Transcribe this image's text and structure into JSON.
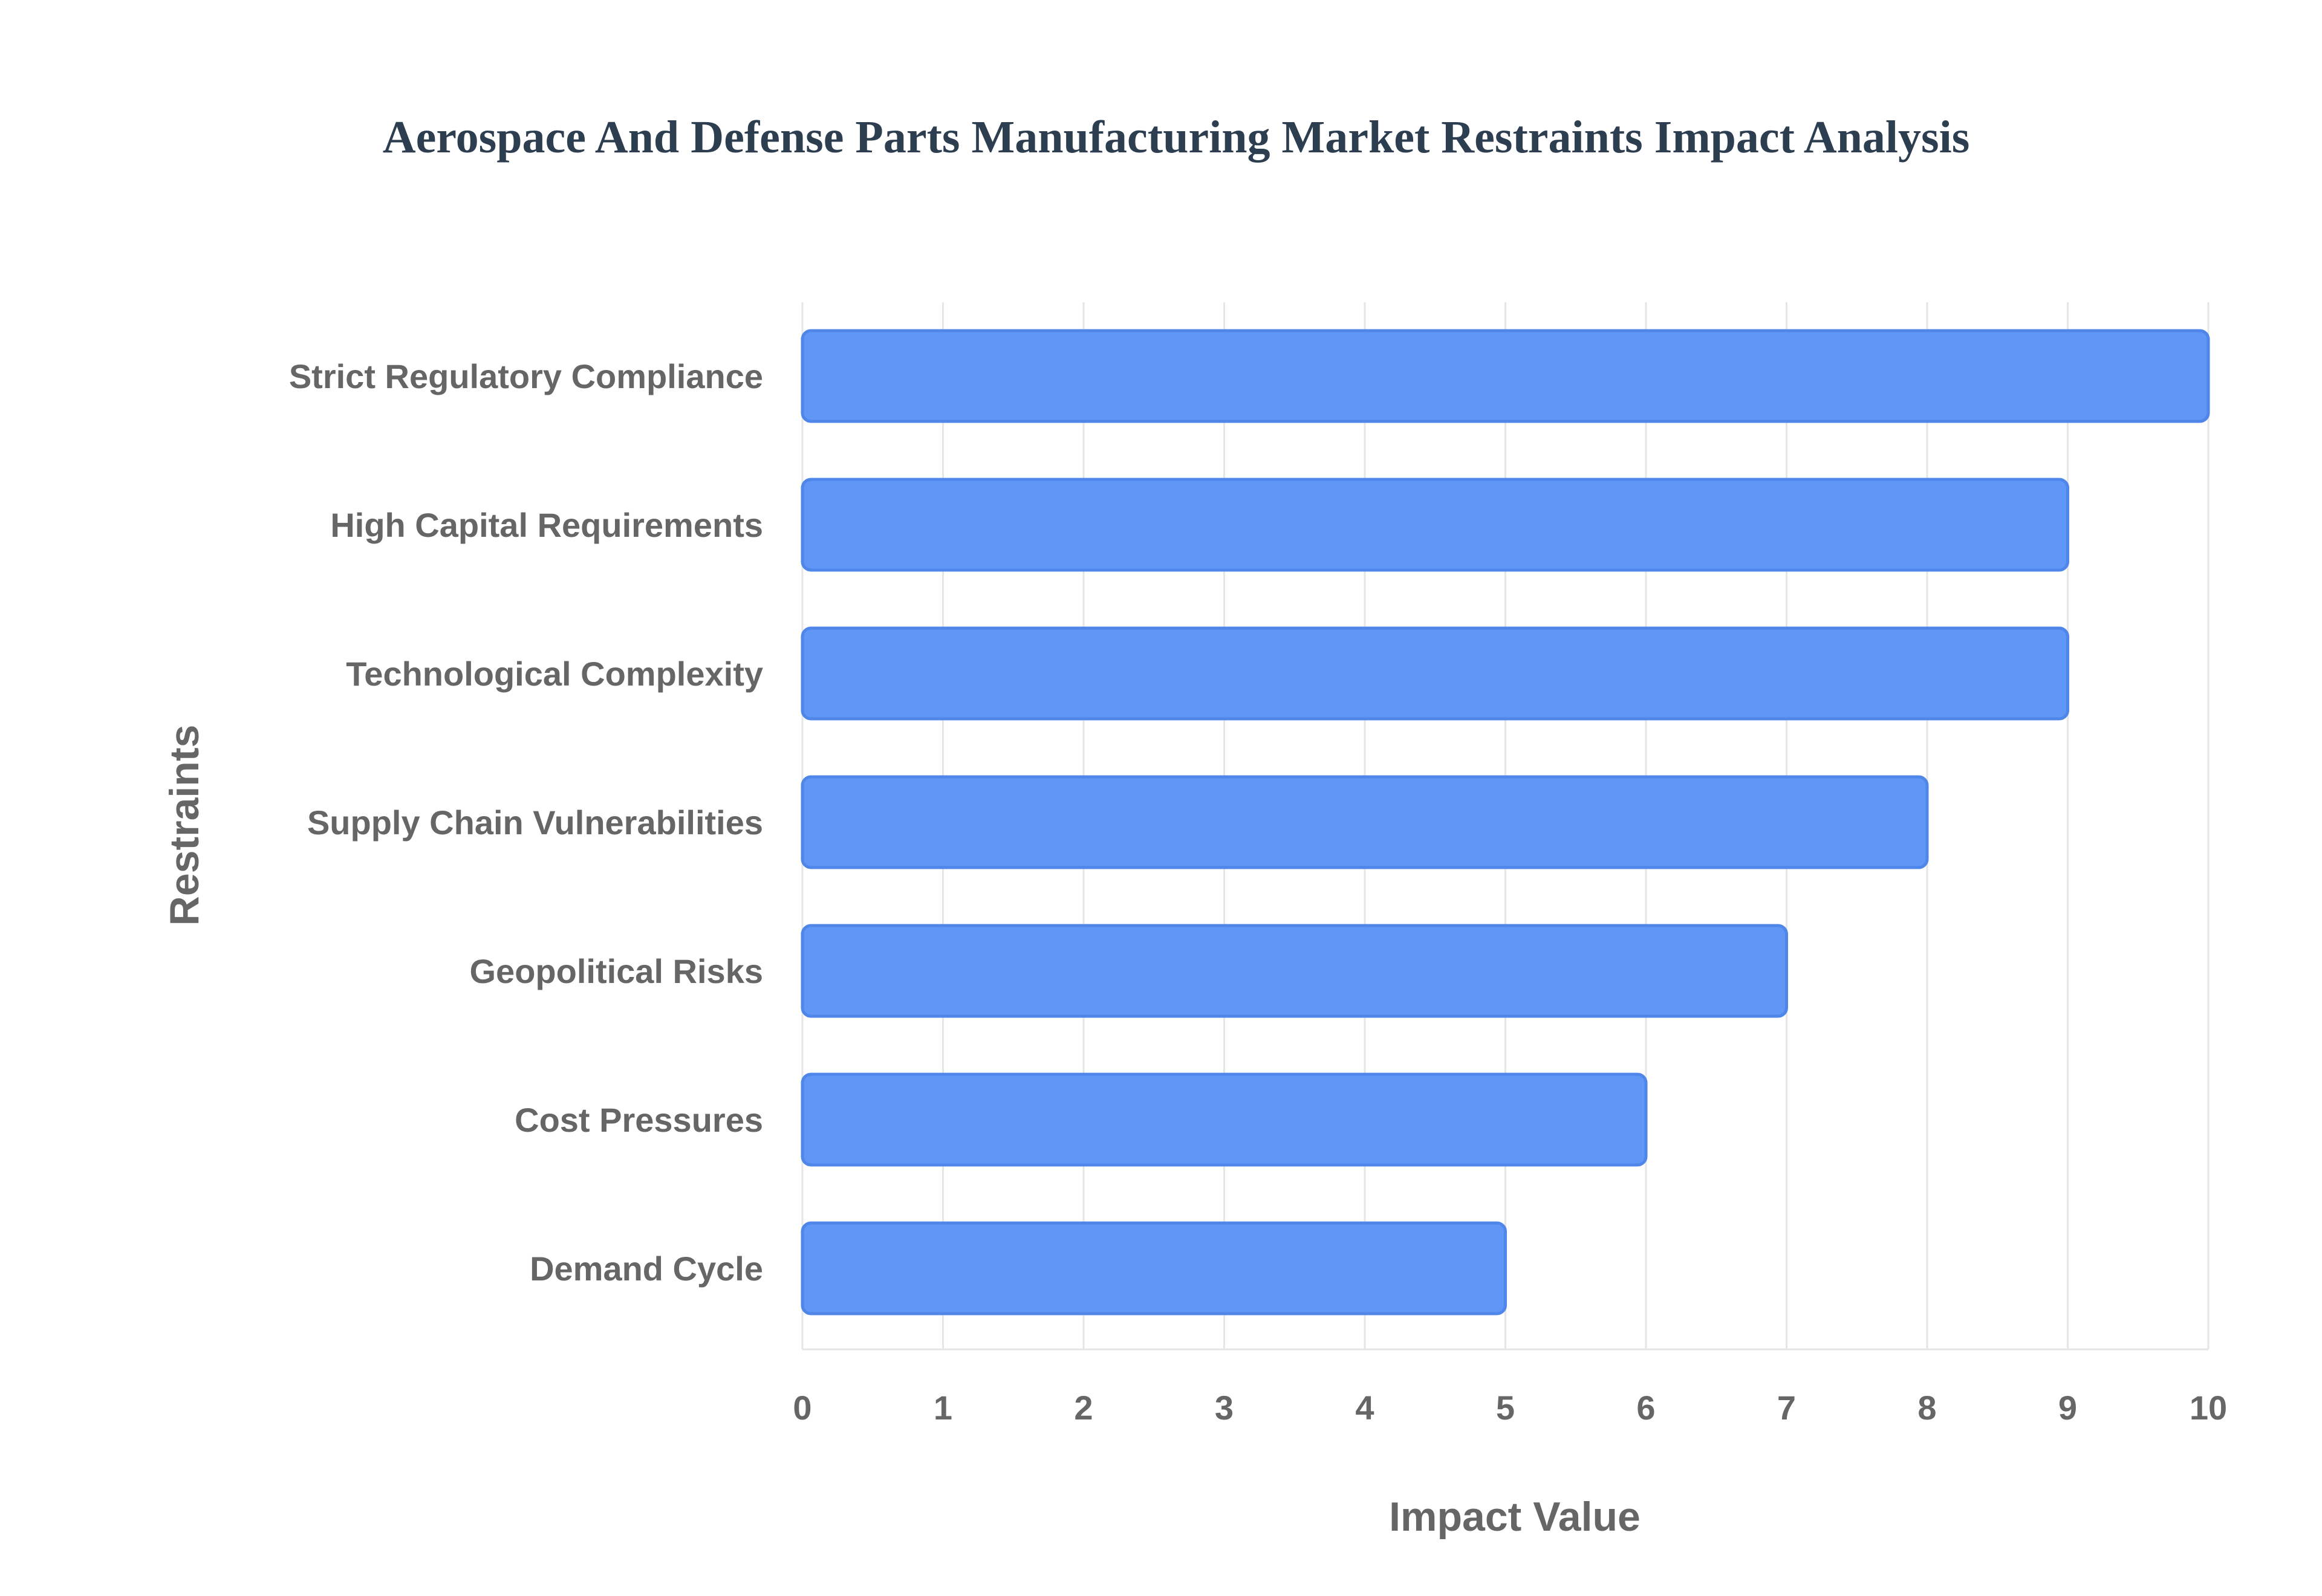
{
  "chart_data": {
    "type": "bar",
    "orientation": "horizontal",
    "title": "Aerospace And Defense Parts Manufacturing Market Restraints Impact Analysis",
    "xlabel": "Impact Value",
    "ylabel": "Restraints",
    "categories": [
      "Strict Regulatory Compliance",
      "High Capital Requirements",
      "Technological Complexity",
      "Supply Chain Vulnerabilities",
      "Geopolitical Risks",
      "Cost Pressures",
      "Demand Cycle"
    ],
    "values": [
      10,
      9,
      9,
      8,
      7,
      6,
      5
    ],
    "xlim": [
      0,
      10
    ],
    "xticks": [
      0,
      1,
      2,
      3,
      4,
      5,
      6,
      7,
      8,
      9,
      10
    ],
    "grid": true,
    "colors": {
      "bar_fill": "#6096f5",
      "bar_stroke": "#4f86ea",
      "title": "#2c3e50",
      "label": "#666666",
      "grid": "#e6e6e6"
    }
  }
}
